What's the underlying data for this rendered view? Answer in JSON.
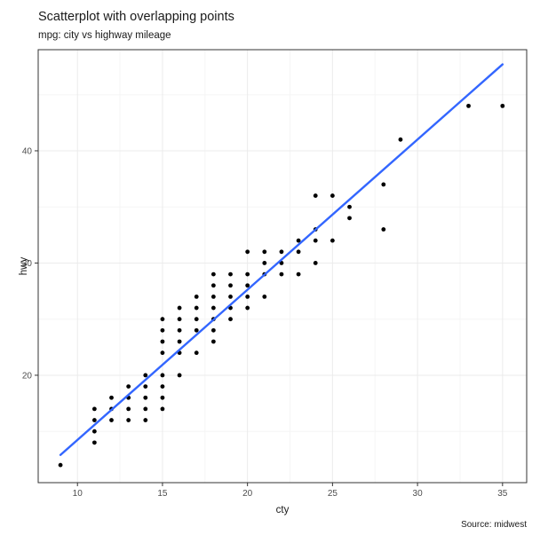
{
  "header": {
    "title": "Scatterplot with overlapping points",
    "subtitle": "mpg: city vs highway mileage"
  },
  "caption": "Source: midwest",
  "chart_data": {
    "type": "scatter",
    "title": "Scatterplot with overlapping points",
    "subtitle": "mpg: city vs highway mileage",
    "caption": "Source: midwest",
    "xlabel": "cty",
    "ylabel": "hwy",
    "xlim": [
      7.69,
      36.42
    ],
    "ylim": [
      10.43,
      49.01
    ],
    "x_ticks": [
      10,
      15,
      20,
      25,
      30,
      35
    ],
    "y_ticks": [
      20,
      30,
      40
    ],
    "x_minor_gridlines": [
      12.5,
      17.5,
      22.5,
      27.5,
      32.5
    ],
    "y_minor_gridlines": [
      15,
      25,
      35,
      45
    ],
    "grid": "on",
    "legend": "none",
    "points": [
      [
        9,
        12
      ],
      [
        11,
        14
      ],
      [
        11,
        15
      ],
      [
        11,
        16
      ],
      [
        11,
        17
      ],
      [
        12,
        16
      ],
      [
        12,
        17
      ],
      [
        12,
        18
      ],
      [
        13,
        16
      ],
      [
        13,
        17
      ],
      [
        13,
        18
      ],
      [
        13,
        19
      ],
      [
        14,
        16
      ],
      [
        14,
        17
      ],
      [
        14,
        18
      ],
      [
        14,
        19
      ],
      [
        14,
        20
      ],
      [
        15,
        17
      ],
      [
        15,
        18
      ],
      [
        15,
        19
      ],
      [
        15,
        20
      ],
      [
        15,
        22
      ],
      [
        15,
        23
      ],
      [
        15,
        24
      ],
      [
        15,
        25
      ],
      [
        16,
        20
      ],
      [
        16,
        22
      ],
      [
        16,
        23
      ],
      [
        16,
        24
      ],
      [
        16,
        25
      ],
      [
        16,
        26
      ],
      [
        17,
        22
      ],
      [
        17,
        24
      ],
      [
        17,
        25
      ],
      [
        17,
        26
      ],
      [
        17,
        27
      ],
      [
        18,
        23
      ],
      [
        18,
        24
      ],
      [
        18,
        25
      ],
      [
        18,
        26
      ],
      [
        18,
        27
      ],
      [
        18,
        28
      ],
      [
        18,
        29
      ],
      [
        19,
        25
      ],
      [
        19,
        26
      ],
      [
        19,
        27
      ],
      [
        19,
        28
      ],
      [
        19,
        29
      ],
      [
        20,
        26
      ],
      [
        20,
        27
      ],
      [
        20,
        28
      ],
      [
        20,
        29
      ],
      [
        20,
        31
      ],
      [
        21,
        27
      ],
      [
        21,
        29
      ],
      [
        21,
        30
      ],
      [
        21,
        31
      ],
      [
        22,
        29
      ],
      [
        22,
        30
      ],
      [
        22,
        31
      ],
      [
        23,
        29
      ],
      [
        23,
        31
      ],
      [
        23,
        32
      ],
      [
        24,
        30
      ],
      [
        24,
        32
      ],
      [
        24,
        33
      ],
      [
        24,
        36
      ],
      [
        25,
        32
      ],
      [
        25,
        36
      ],
      [
        26,
        34
      ],
      [
        26,
        35
      ],
      [
        28,
        33
      ],
      [
        28,
        37
      ],
      [
        29,
        41
      ],
      [
        33,
        44
      ],
      [
        35,
        44
      ]
    ],
    "trend_line": {
      "type": "linear",
      "x_start": 9,
      "y_start": 12.9,
      "x_end": 35,
      "y_end": 47.7
    },
    "colors": {
      "point": "#000000",
      "trend_line": "#3366FF",
      "grid_major": "#ebebeb",
      "grid_minor": "#f5f5f5",
      "panel_border": "#333333",
      "tick_mark": "#333333",
      "tick_label": "#4d4d4d",
      "background": "#ffffff"
    }
  }
}
